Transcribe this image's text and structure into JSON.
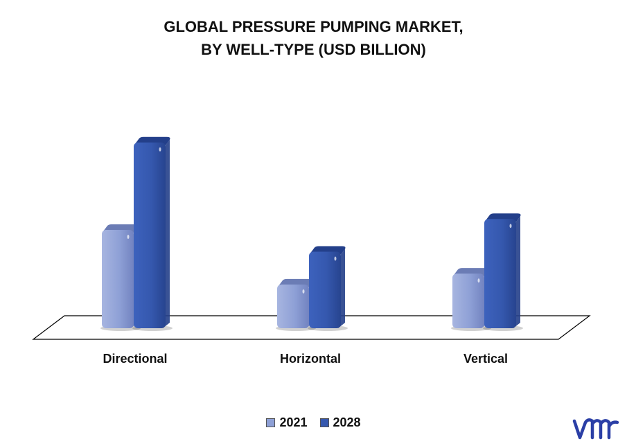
{
  "title_line1": "GLOBAL PRESSURE PUMPING MARKET,",
  "title_line2": "BY WELL-TYPE (USD BILLION)",
  "legend": [
    "2021",
    "2028"
  ],
  "logo_text": "vmr",
  "colors": {
    "s2021": "#8ea0d6",
    "s2028": "#3558ae",
    "s2021_top": "#6b7cb5",
    "s2028_top": "#233f8a"
  },
  "chart_data": {
    "type": "bar",
    "title": "GLOBAL PRESSURE PUMPING MARKET, BY WELL-TYPE (USD BILLION)",
    "categories": [
      "Directional",
      "Horizontal",
      "Vertical"
    ],
    "series": [
      {
        "name": "2021",
        "values": [
          4.5,
          2.0,
          2.5
        ]
      },
      {
        "name": "2028",
        "values": [
          8.5,
          3.5,
          5.0
        ]
      }
    ],
    "ylim": [
      0,
      9
    ],
    "legend": "bottom",
    "grid": false
  }
}
